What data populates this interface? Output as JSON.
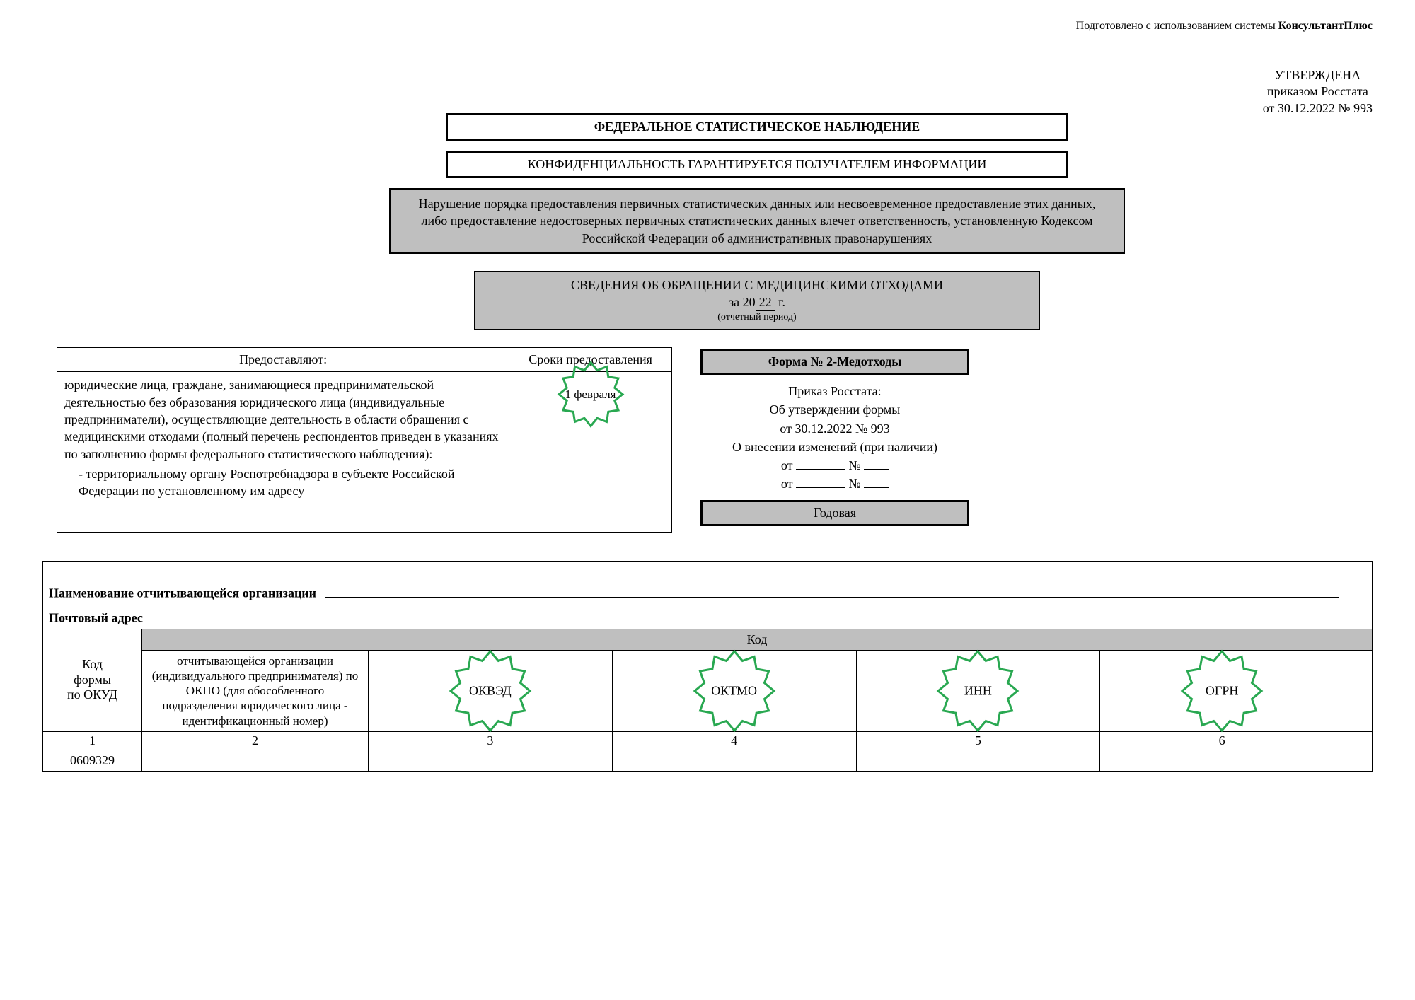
{
  "attribution": {
    "prefix": "Подготовлено с использованием системы ",
    "brand": "КонсультантПлюс"
  },
  "approval": {
    "l1": "УТВЕРЖДЕНА",
    "l2": "приказом Росстата",
    "l3": "от 30.12.2022 № 993"
  },
  "banner1": "ФЕДЕРАЛЬНОЕ СТАТИСТИЧЕСКОЕ НАБЛЮДЕНИЕ",
  "banner2": "КОНФИДЕНЦИАЛЬНОСТЬ ГАРАНТИРУЕТСЯ ПОЛУЧАТЕЛЕМ ИНФОРМАЦИИ",
  "warning": "Нарушение порядка предоставления первичных статистических данных или несвоевременное предоставление этих данных, либо предоставление недостоверных первичных статистических данных влечет ответственность, установленную Кодексом Российской Федерации об административных правонарушениях",
  "title": {
    "main": "СВЕДЕНИЯ ОБ ОБРАЩЕНИИ С МЕДИЦИНСКИМИ ОТХОДАМИ",
    "za": "за 20",
    "year": "22",
    "g": " г.",
    "note": "(отчетный период)"
  },
  "left_table": {
    "h1": "Предоставляют:",
    "h2": "Сроки предоставления",
    "desc": "юридические лица, граждане, занимающиеся предпринимательской деятельностью без образования юридического лица (индивидуальные предприниматели), осуществляющие деятельность в области обращения с медицинскими отходами (полный перечень респондентов приведен в указаниях по заполнению формы федерального статистического наблюдения):",
    "bullet": "- территориальному органу Роспотребнадзора в субъекте Российской Федерации по установленному им адресу",
    "deadline": "1 февраля"
  },
  "right": {
    "form_name": "Форма № 2-Медотходы",
    "l1": "Приказ Росстата:",
    "l2": "Об утверждении формы",
    "l3": "от 30.12.2022 № 993",
    "l4": "О внесении изменений (при наличии)",
    "ot": "от",
    "no": "№",
    "period": "Годовая"
  },
  "org": {
    "name_label": "Наименование отчитывающейся организации",
    "addr_label": "Почтовый адрес"
  },
  "codes": {
    "header": "Код",
    "okud_label_l1": "Код",
    "okud_label_l2": "формы",
    "okud_label_l3": "по ОКУД",
    "okpo_desc": "отчитывающейся организации (индивидуального предпринимателя) по ОКПО (для обособленного подразделения юридического лица - идентификационный номер)",
    "okved": "ОКВЭД",
    "oktmo": "ОКТМО",
    "inn": "ИНН",
    "ogrn": "ОГРН",
    "nums": [
      "1",
      "2",
      "3",
      "4",
      "5",
      "6"
    ],
    "okud_val": "0609329"
  },
  "seal": {
    "stroke": "#29a851",
    "stroke_width": 3
  }
}
